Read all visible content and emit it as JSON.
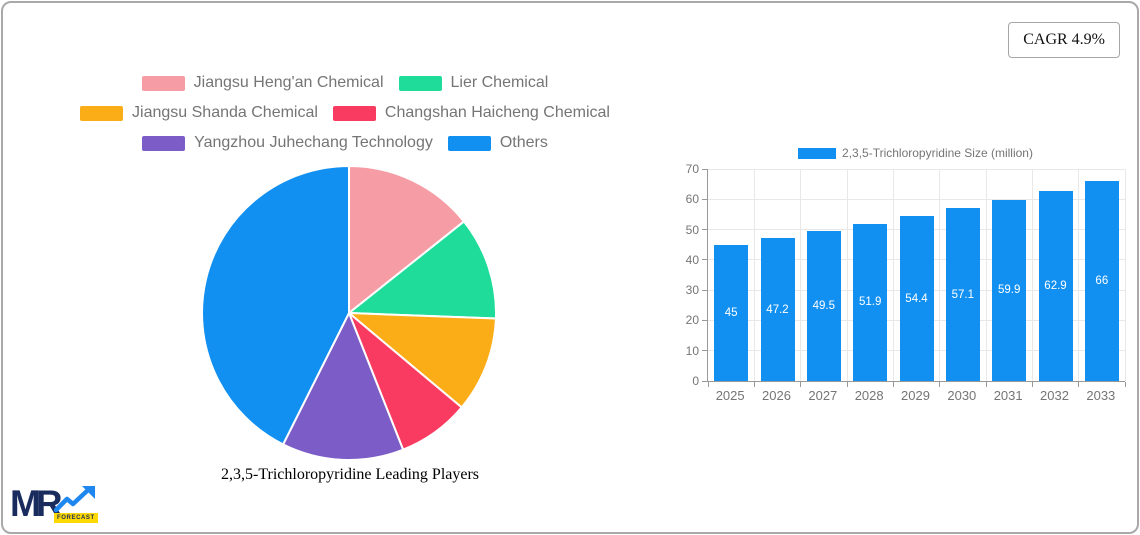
{
  "cagr_badge": {
    "label": "CAGR 4.9%"
  },
  "logo": {
    "text": "MR",
    "subtext": "FORECAST"
  },
  "chart_data": [
    {
      "type": "pie",
      "title": "2,3,5-Trichloropyridine Leading Players",
      "legend_position": "top",
      "legend_rows": [
        [
          0,
          1
        ],
        [
          2,
          3
        ],
        [
          4,
          5
        ]
      ],
      "start_angle_deg": 0,
      "direction": "clockwise",
      "slices": [
        {
          "label": "Jiangsu Heng'an Chemical",
          "value": 14.3,
          "color": "#F59CA5"
        },
        {
          "label": "Lier Chemical",
          "value": 11.3,
          "color": "#1FDC9B"
        },
        {
          "label": "Jiangsu Shanda Chemical",
          "value": 10.5,
          "color": "#FBAD18"
        },
        {
          "label": "Changshan Haicheng Chemical",
          "value": 7.9,
          "color": "#FA3B61"
        },
        {
          "label": "Yangzhou Juhechang Technology",
          "value": 13.4,
          "color": "#7C5DC8"
        },
        {
          "label": "Others",
          "value": 42.6,
          "color": "#1290F2"
        }
      ]
    },
    {
      "type": "bar",
      "legend": "2,3,5-Trichloropyridine Size (million)",
      "categories": [
        "2025",
        "2026",
        "2027",
        "2028",
        "2029",
        "2030",
        "2031",
        "2032",
        "2033"
      ],
      "values": [
        45,
        47.2,
        49.5,
        51.9,
        54.4,
        57.1,
        59.9,
        62.9,
        66
      ],
      "ylim": [
        0,
        70
      ],
      "yticks": [
        0,
        10,
        20,
        30,
        40,
        50,
        60,
        70
      ],
      "bar_color": "#1290F2",
      "grid": true,
      "legend_position": "top"
    }
  ],
  "colors": {
    "axis_text": "#757575",
    "grid_line": "#e8e8e8",
    "axis_line": "#999999",
    "card_border": "#a9a9a9",
    "logo_navy": "#1a2b5e",
    "logo_yellow": "#ffd903",
    "logo_arrow_blue": "#1e88f0"
  }
}
